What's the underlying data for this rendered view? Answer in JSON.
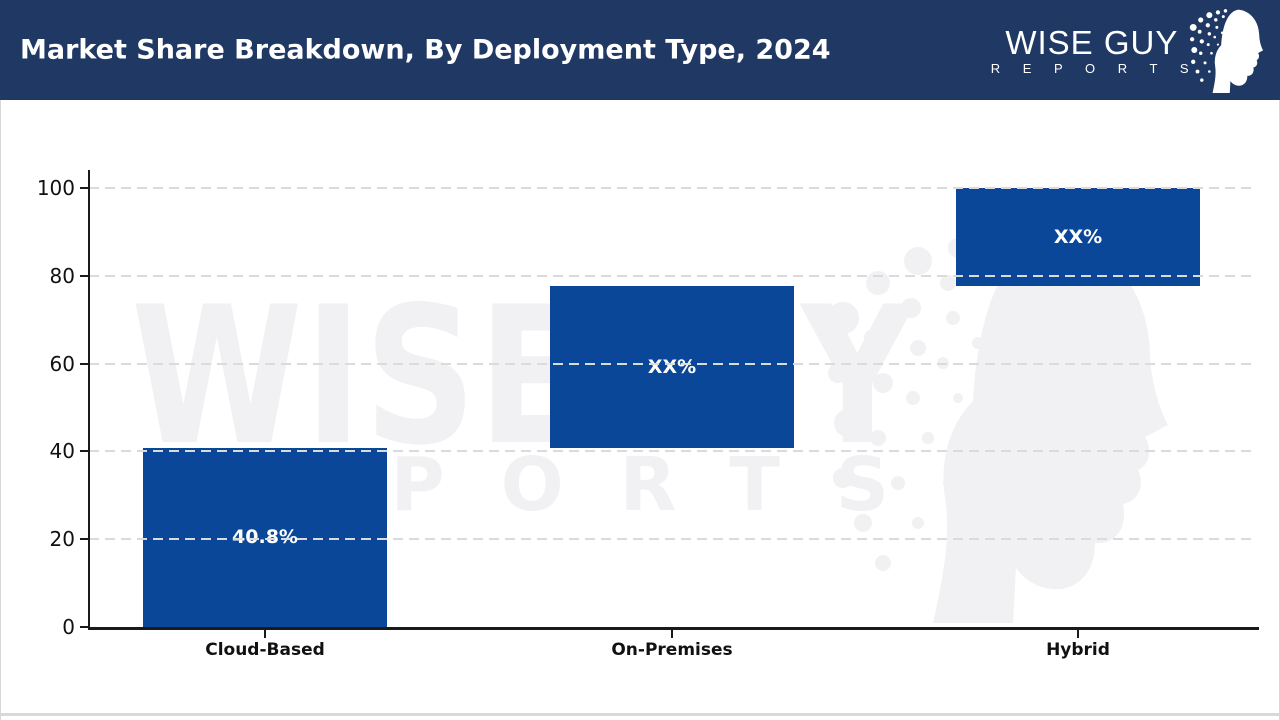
{
  "header": {
    "title": "Market Share Breakdown, By Deployment Type, 2024",
    "logo": {
      "line1": "WISE GUY",
      "line2": "R E P O R T S"
    }
  },
  "watermark": {
    "row1": "WISE G",
    "row1b": "Y",
    "row2": "REPORTS"
  },
  "chart_data": {
    "type": "bar",
    "subtype": "waterfall-stacked-percentage",
    "title": "Market Share Breakdown, By Deployment Type, 2024",
    "categories": [
      "Cloud-Based",
      "On-Premises",
      "Hybrid"
    ],
    "segments": [
      {
        "category": "Cloud-Based",
        "start": 0,
        "end": 40.8,
        "label": "40.8%"
      },
      {
        "category": "On-Premises",
        "start": 40.8,
        "end": 77.6,
        "label": "XX%"
      },
      {
        "category": "Hybrid",
        "start": 77.6,
        "end": 100,
        "label": "XX%"
      }
    ],
    "ylim": [
      0,
      100
    ],
    "yticks": [
      0,
      20,
      40,
      60,
      80,
      100
    ],
    "xlabel": "",
    "ylabel": "",
    "grid": "horizontal dashed",
    "legend": "none",
    "bar_color": "#0a4799",
    "value_label_color": "#ffffff"
  },
  "colors": {
    "header_bg": "#1f3864",
    "axis": "#1a1a1a",
    "gridline": "#dbdbdb",
    "watermark": "#f1f1f3",
    "frame_rule": "#d9d9d9"
  }
}
